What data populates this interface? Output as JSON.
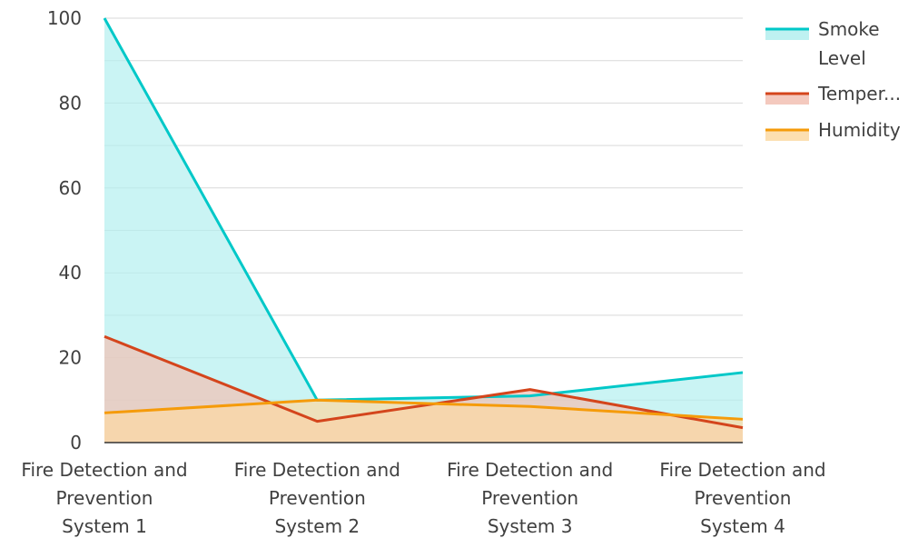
{
  "chart_data": {
    "type": "area",
    "title": "",
    "xlabel": "",
    "ylabel": "",
    "categories": [
      [
        "Fire Detection and",
        "Prevention",
        "System 1"
      ],
      [
        "Fire Detection and",
        "Prevention",
        "System 2"
      ],
      [
        "Fire Detection and",
        "Prevention",
        "System 3"
      ],
      [
        "Fire Detection and",
        "Prevention",
        "System 4"
      ]
    ],
    "ylim": [
      0,
      100
    ],
    "yticks": [
      0,
      20,
      40,
      60,
      80,
      100
    ],
    "grid": true,
    "legend_position": "top-right",
    "series": [
      {
        "name": "Smoke Level",
        "legend_lines": [
          "Smoke",
          "Level"
        ],
        "values": [
          100,
          10,
          11,
          16.5
        ],
        "color": "#00c8c8",
        "fill": "#b3efef"
      },
      {
        "name": "Temper...",
        "legend_lines": [
          "Temper..."
        ],
        "values": [
          25,
          5,
          12.5,
          3.5
        ],
        "color": "#d4451c",
        "fill": "#f2c0b3"
      },
      {
        "name": "Humidity",
        "legend_lines": [
          "Humidity"
        ],
        "values": [
          7,
          10,
          8.5,
          5.5
        ],
        "color": "#f59b0a",
        "fill": "#fcd9a3"
      }
    ]
  }
}
